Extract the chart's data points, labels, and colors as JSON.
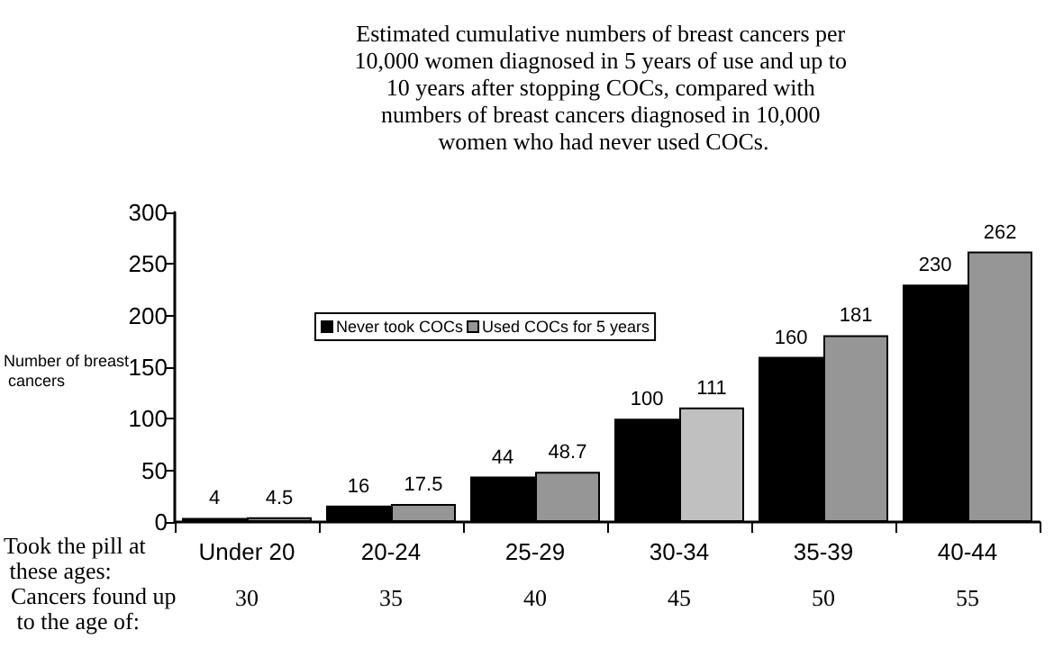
{
  "chart_data": {
    "type": "bar",
    "title": "Estimated cumulative numbers of breast cancers per 10,000 women diagnosed in 5 years of use and up to 10 years after stopping COCs, compared with numbers of breast cancers diagnosed in 10,000 women who had never used COCs.",
    "xlabel": "Took the pill at these ages:",
    "ylabel": "Number of breast cancers",
    "categories": [
      "Under 20",
      "20-24",
      "25-29",
      "30-34",
      "35-39",
      "40-44"
    ],
    "series": [
      {
        "name": "Never took COCs",
        "color": "#000000",
        "values": [
          4,
          16,
          44,
          100,
          160,
          230
        ]
      },
      {
        "name": "Used COCs for 5 years",
        "color": "#969696",
        "colors": [
          "#969696",
          "#969696",
          "#969696",
          "#c0c0c0",
          "#969696",
          "#969696"
        ],
        "values": [
          4.5,
          17.5,
          48.7,
          111,
          181,
          262
        ]
      }
    ],
    "ylim": [
      0,
      300
    ],
    "yticks": [
      0,
      50,
      100,
      150,
      200,
      250,
      300
    ],
    "data_labels": true,
    "grid": false,
    "legend": "left",
    "annotations": [
      "Cancers found up to the age of:",
      "30",
      "35",
      "40",
      "45",
      "50",
      "55"
    ]
  }
}
